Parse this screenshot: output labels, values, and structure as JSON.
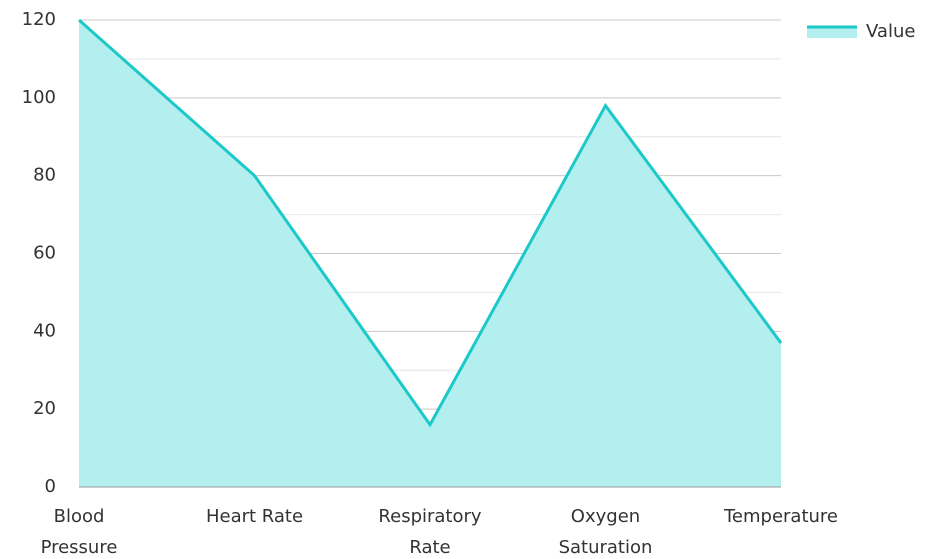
{
  "chart_data": {
    "type": "area",
    "categories": [
      "Blood Pressure",
      "Heart Rate",
      "Respiratory Rate",
      "Oxygen Saturation",
      "Temperature"
    ],
    "series": [
      {
        "name": "Value",
        "color": "#1cc8c8",
        "fill": "#b3efee",
        "values": [
          120,
          80,
          16,
          98,
          37
        ]
      }
    ],
    "ylim": [
      0,
      120
    ],
    "yticks": [
      0,
      20,
      40,
      60,
      80,
      100,
      120
    ],
    "grid": true,
    "minor_grid": true,
    "legend": "top-right"
  }
}
